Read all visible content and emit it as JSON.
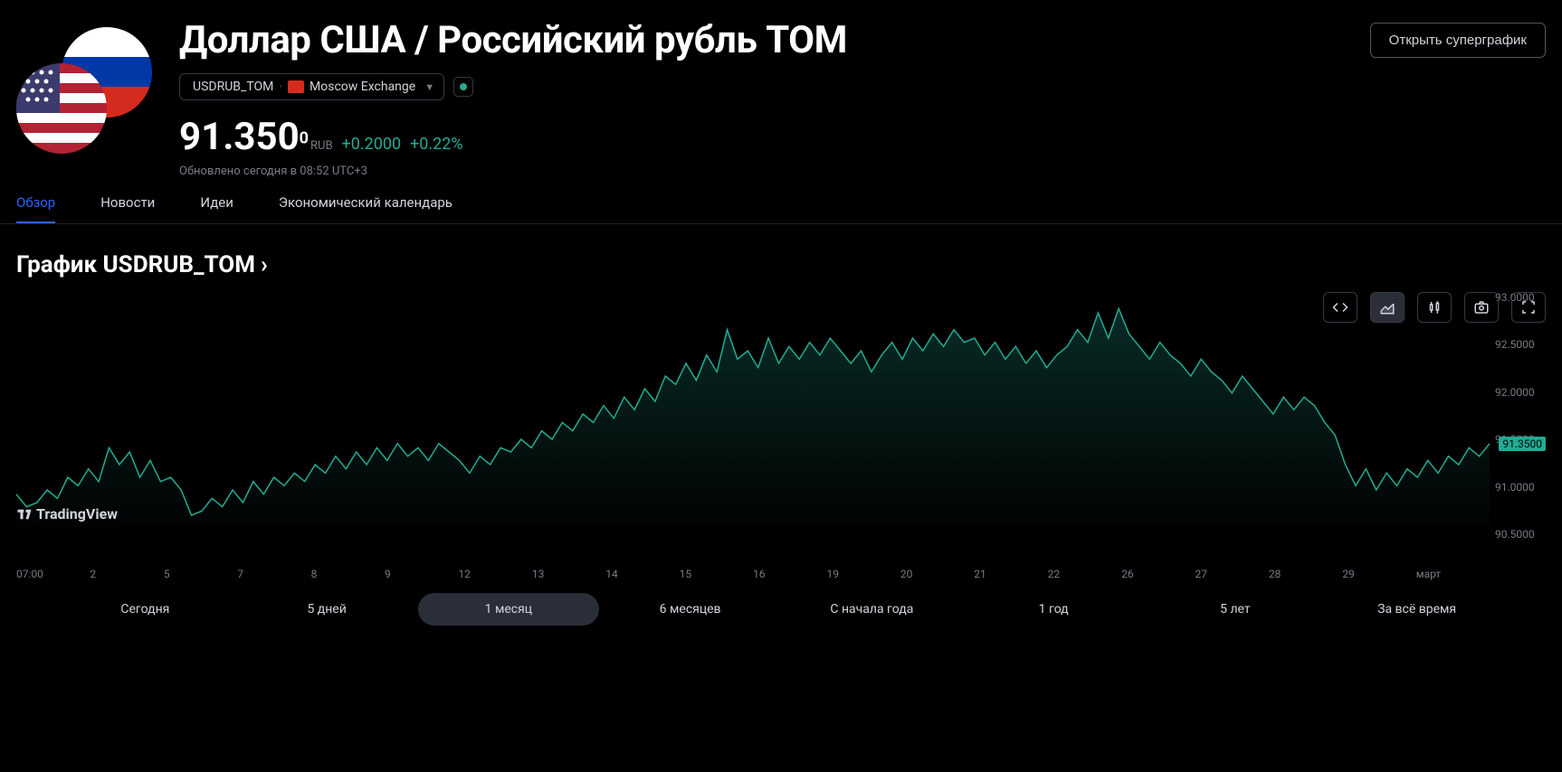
{
  "header": {
    "title": "Доллар США / Российский рубль TOM",
    "open_button": "Открыть суперграфик",
    "ticker": "USDRUB_TOM",
    "exchange": "Moscow Exchange"
  },
  "price": {
    "main": "91.350",
    "sup": "0",
    "unit": "RUB",
    "change_abs": "+0.2000",
    "change_pct": "+0.22%",
    "updated": "Обновлено сегодня в 08:52 UTC+3",
    "change_color": "#22ab94"
  },
  "tabs": [
    {
      "label": "Обзор",
      "active": true
    },
    {
      "label": "Новости",
      "active": false
    },
    {
      "label": "Идеи",
      "active": false
    },
    {
      "label": "Экономический календарь",
      "active": false
    }
  ],
  "chart_title": "График USDRUB_TOM",
  "brand": "TradingView",
  "chart": {
    "type": "area",
    "line_color": "#22ab94",
    "fill_from": "rgba(34,171,148,0.25)",
    "fill_to": "rgba(34,171,148,0.00)",
    "background": "#000000",
    "ylim": [
      90.2,
      93.2
    ],
    "y_ticks": [
      "93.0000",
      "92.5000",
      "92.0000",
      "91.5000",
      "91.0000",
      "90.5000"
    ],
    "price_label_value": "91.3500",
    "price_label_bg": "#22ab94",
    "x_ticks": [
      "07:00",
      "2",
      "5",
      "7",
      "8",
      "9",
      "12",
      "13",
      "14",
      "15",
      "16",
      "19",
      "20",
      "21",
      "22",
      "26",
      "27",
      "28",
      "29",
      "март"
    ],
    "data": [
      90.75,
      90.6,
      90.65,
      90.8,
      90.7,
      90.95,
      90.85,
      91.05,
      90.9,
      91.3,
      91.1,
      91.25,
      90.95,
      91.15,
      90.9,
      90.95,
      90.8,
      90.5,
      90.55,
      90.7,
      90.6,
      90.8,
      90.65,
      90.9,
      90.75,
      90.95,
      90.85,
      91.0,
      90.9,
      91.1,
      91.0,
      91.2,
      91.05,
      91.25,
      91.1,
      91.3,
      91.15,
      91.35,
      91.2,
      91.3,
      91.15,
      91.35,
      91.25,
      91.15,
      91.0,
      91.2,
      91.1,
      91.3,
      91.25,
      91.4,
      91.3,
      91.5,
      91.4,
      91.6,
      91.5,
      91.7,
      91.6,
      91.8,
      91.65,
      91.9,
      91.75,
      92.0,
      91.85,
      92.15,
      92.05,
      92.3,
      92.1,
      92.4,
      92.2,
      92.7,
      92.35,
      92.45,
      92.25,
      92.6,
      92.3,
      92.5,
      92.35,
      92.55,
      92.4,
      92.6,
      92.45,
      92.3,
      92.45,
      92.2,
      92.4,
      92.55,
      92.35,
      92.6,
      92.45,
      92.65,
      92.5,
      92.7,
      92.55,
      92.6,
      92.4,
      92.55,
      92.35,
      92.5,
      92.3,
      92.45,
      92.25,
      92.4,
      92.5,
      92.7,
      92.55,
      92.9,
      92.6,
      92.95,
      92.65,
      92.5,
      92.35,
      92.55,
      92.4,
      92.3,
      92.15,
      92.35,
      92.2,
      92.1,
      91.95,
      92.15,
      92.0,
      91.85,
      91.7,
      91.9,
      91.75,
      91.9,
      91.8,
      91.6,
      91.45,
      91.1,
      90.85,
      91.05,
      90.8,
      91.0,
      90.85,
      91.05,
      90.95,
      91.15,
      91.0,
      91.2,
      91.1,
      91.3,
      91.2,
      91.35
    ]
  },
  "time_ranges": [
    {
      "label": "Сегодня",
      "active": false
    },
    {
      "label": "5 дней",
      "active": false
    },
    {
      "label": "1 месяц",
      "active": true
    },
    {
      "label": "6 месяцев",
      "active": false
    },
    {
      "label": "С начала года",
      "active": false
    },
    {
      "label": "1 год",
      "active": false
    },
    {
      "label": "5 лет",
      "active": false
    },
    {
      "label": "За всё время",
      "active": false
    }
  ]
}
